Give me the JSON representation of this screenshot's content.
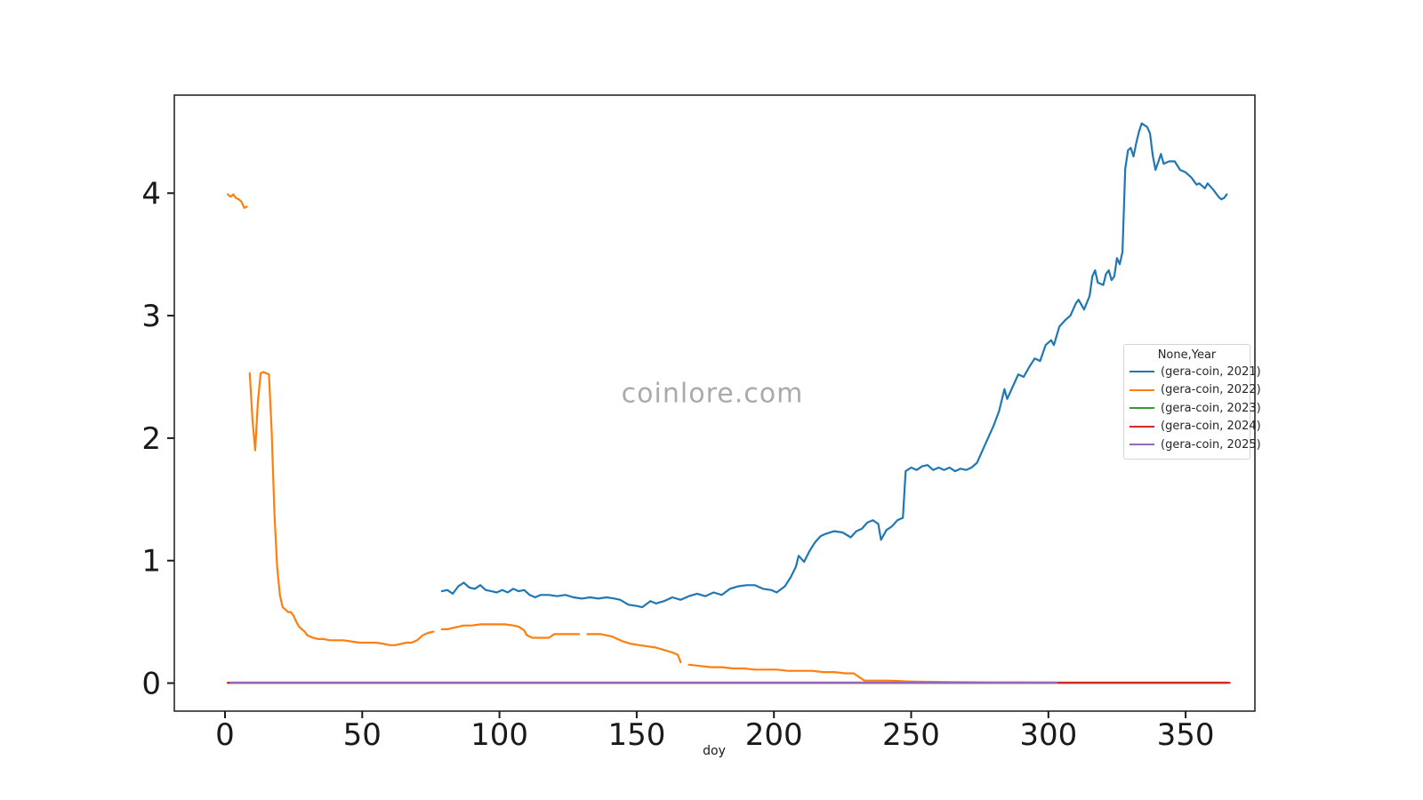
{
  "page": {
    "background": "#ffffff"
  },
  "chart_data": {
    "type": "line",
    "title": "",
    "xlabel": "doy",
    "ylabel": "",
    "watermark": "coinlore.com",
    "xlim": [
      -18,
      384
    ],
    "ylim": [
      -0.23,
      4.8
    ],
    "grid": false,
    "x_ticks": [
      0,
      50,
      100,
      150,
      200,
      250,
      300,
      350
    ],
    "y_ticks": [
      0,
      1,
      2,
      3,
      4
    ],
    "legend": {
      "title": "None,Year",
      "position": "center-right",
      "entries": [
        {
          "label": "(gera-coin, 2021)",
          "color": "#1f77b4"
        },
        {
          "label": "(gera-coin, 2022)",
          "color": "#ff7f0e"
        },
        {
          "label": "(gera-coin, 2023)",
          "color": "#2ca02c"
        },
        {
          "label": "(gera-coin, 2024)",
          "color": "#d62728"
        },
        {
          "label": "(gera-coin, 2025)",
          "color": "#9467bd"
        }
      ]
    },
    "series": [
      {
        "name": "(gera-coin, 2021)",
        "year": 2021,
        "color": "#1f77b4",
        "segments": [
          [
            [
              79,
              0.75
            ],
            [
              81,
              0.76
            ],
            [
              83,
              0.73
            ],
            [
              85,
              0.79
            ],
            [
              87,
              0.82
            ],
            [
              89,
              0.78
            ],
            [
              91,
              0.77
            ],
            [
              93,
              0.8
            ],
            [
              95,
              0.76
            ],
            [
              97,
              0.75
            ],
            [
              99,
              0.74
            ],
            [
              101,
              0.76
            ],
            [
              103,
              0.74
            ],
            [
              105,
              0.77
            ],
            [
              107,
              0.75
            ],
            [
              109,
              0.76
            ],
            [
              111,
              0.72
            ],
            [
              113,
              0.7
            ],
            [
              115,
              0.72
            ],
            [
              118,
              0.72
            ],
            [
              121,
              0.71
            ],
            [
              124,
              0.72
            ],
            [
              127,
              0.7
            ],
            [
              130,
              0.69
            ],
            [
              133,
              0.7
            ],
            [
              136,
              0.69
            ],
            [
              139,
              0.7
            ],
            [
              142,
              0.69
            ],
            [
              144,
              0.68
            ],
            [
              147,
              0.64
            ],
            [
              150,
              0.63
            ],
            [
              152,
              0.62
            ],
            [
              155,
              0.67
            ],
            [
              157,
              0.65
            ],
            [
              160,
              0.67
            ],
            [
              163,
              0.7
            ],
            [
              166,
              0.68
            ],
            [
              169,
              0.71
            ],
            [
              172,
              0.73
            ],
            [
              175,
              0.71
            ],
            [
              178,
              0.74
            ],
            [
              181,
              0.72
            ],
            [
              184,
              0.77
            ],
            [
              187,
              0.79
            ],
            [
              190,
              0.8
            ],
            [
              193,
              0.8
            ],
            [
              196,
              0.77
            ],
            [
              199,
              0.76
            ],
            [
              201,
              0.74
            ],
            [
              204,
              0.79
            ],
            [
              206,
              0.86
            ],
            [
              208,
              0.95
            ],
            [
              209,
              1.04
            ],
            [
              211,
              0.99
            ],
            [
              213,
              1.08
            ],
            [
              215,
              1.15
            ],
            [
              217,
              1.2
            ],
            [
              219,
              1.22
            ],
            [
              222,
              1.24
            ],
            [
              225,
              1.23
            ],
            [
              228,
              1.19
            ],
            [
              230,
              1.24
            ],
            [
              232,
              1.26
            ],
            [
              234,
              1.31
            ],
            [
              236,
              1.33
            ],
            [
              238,
              1.3
            ],
            [
              239,
              1.17
            ],
            [
              241,
              1.25
            ],
            [
              243,
              1.28
            ],
            [
              245,
              1.33
            ],
            [
              247,
              1.35
            ],
            [
              248,
              1.73
            ],
            [
              250,
              1.76
            ],
            [
              252,
              1.74
            ],
            [
              254,
              1.77
            ],
            [
              256,
              1.78
            ],
            [
              258,
              1.74
            ],
            [
              260,
              1.76
            ],
            [
              262,
              1.74
            ],
            [
              264,
              1.76
            ],
            [
              266,
              1.73
            ],
            [
              268,
              1.75
            ],
            [
              270,
              1.74
            ],
            [
              272,
              1.76
            ],
            [
              274,
              1.8
            ],
            [
              276,
              1.9
            ],
            [
              278,
              2.0
            ],
            [
              280,
              2.1
            ],
            [
              282,
              2.22
            ],
            [
              284,
              2.4
            ],
            [
              285,
              2.32
            ],
            [
              287,
              2.42
            ],
            [
              289,
              2.52
            ],
            [
              291,
              2.5
            ],
            [
              293,
              2.58
            ],
            [
              295,
              2.65
            ],
            [
              297,
              2.63
            ],
            [
              299,
              2.76
            ],
            [
              301,
              2.8
            ],
            [
              302,
              2.76
            ],
            [
              304,
              2.91
            ],
            [
              306,
              2.96
            ],
            [
              308,
              3.0
            ],
            [
              310,
              3.1
            ],
            [
              311,
              3.13
            ],
            [
              313,
              3.05
            ],
            [
              315,
              3.16
            ],
            [
              316,
              3.32
            ],
            [
              317,
              3.37
            ],
            [
              318,
              3.27
            ],
            [
              320,
              3.25
            ],
            [
              321,
              3.34
            ],
            [
              322,
              3.37
            ],
            [
              323,
              3.29
            ],
            [
              324,
              3.32
            ],
            [
              325,
              3.47
            ],
            [
              326,
              3.42
            ],
            [
              327,
              3.52
            ],
            [
              328,
              4.2
            ],
            [
              329,
              4.35
            ],
            [
              330,
              4.37
            ],
            [
              331,
              4.3
            ],
            [
              332,
              4.41
            ],
            [
              333,
              4.5
            ],
            [
              334,
              4.57
            ],
            [
              336,
              4.54
            ],
            [
              337,
              4.49
            ],
            [
              338,
              4.31
            ],
            [
              339,
              4.19
            ],
            [
              340,
              4.25
            ],
            [
              341,
              4.32
            ],
            [
              342,
              4.24
            ],
            [
              344,
              4.26
            ],
            [
              346,
              4.26
            ],
            [
              348,
              4.19
            ],
            [
              350,
              4.17
            ],
            [
              352,
              4.13
            ],
            [
              354,
              4.07
            ],
            [
              355,
              4.08
            ],
            [
              357,
              4.04
            ],
            [
              358,
              4.08
            ],
            [
              360,
              4.03
            ],
            [
              362,
              3.97
            ],
            [
              363,
              3.95
            ],
            [
              364,
              3.96
            ],
            [
              365,
              3.99
            ]
          ]
        ]
      },
      {
        "name": "(gera-coin, 2022)",
        "year": 2022,
        "color": "#ff7f0e",
        "segments": [
          [
            [
              1,
              3.99
            ],
            [
              2,
              3.97
            ],
            [
              3,
              3.99
            ],
            [
              4,
              3.96
            ],
            [
              5,
              3.95
            ],
            [
              6,
              3.93
            ],
            [
              7,
              3.88
            ],
            [
              8,
              3.89
            ]
          ],
          [
            [
              9,
              2.53
            ],
            [
              10,
              2.15
            ],
            [
              11,
              1.9
            ],
            [
              12,
              2.3
            ],
            [
              13,
              2.53
            ],
            [
              14,
              2.54
            ],
            [
              15,
              2.53
            ],
            [
              16,
              2.52
            ],
            [
              17,
              2.05
            ],
            [
              18,
              1.4
            ],
            [
              19,
              0.95
            ],
            [
              20,
              0.72
            ],
            [
              21,
              0.62
            ],
            [
              22,
              0.6
            ],
            [
              23,
              0.58
            ],
            [
              24,
              0.58
            ],
            [
              25,
              0.55
            ],
            [
              26,
              0.5
            ],
            [
              27,
              0.46
            ],
            [
              28,
              0.44
            ],
            [
              29,
              0.42
            ],
            [
              30,
              0.39
            ],
            [
              32,
              0.37
            ],
            [
              34,
              0.36
            ],
            [
              36,
              0.36
            ],
            [
              38,
              0.35
            ],
            [
              40,
              0.35
            ],
            [
              43,
              0.35
            ],
            [
              46,
              0.34
            ],
            [
              49,
              0.33
            ],
            [
              52,
              0.33
            ],
            [
              55,
              0.33
            ],
            [
              58,
              0.32
            ],
            [
              60,
              0.31
            ],
            [
              62,
              0.31
            ],
            [
              64,
              0.32
            ],
            [
              66,
              0.33
            ],
            [
              68,
              0.33
            ],
            [
              70,
              0.35
            ],
            [
              72,
              0.39
            ],
            [
              74,
              0.41
            ],
            [
              76,
              0.42
            ]
          ],
          [
            [
              79,
              0.44
            ],
            [
              81,
              0.44
            ],
            [
              83,
              0.45
            ],
            [
              85,
              0.46
            ],
            [
              87,
              0.47
            ],
            [
              90,
              0.47
            ],
            [
              93,
              0.48
            ],
            [
              96,
              0.48
            ],
            [
              99,
              0.48
            ],
            [
              102,
              0.48
            ],
            [
              105,
              0.47
            ],
            [
              107,
              0.46
            ],
            [
              109,
              0.43
            ],
            [
              110,
              0.39
            ],
            [
              112,
              0.37
            ],
            [
              114,
              0.37
            ],
            [
              116,
              0.37
            ],
            [
              118,
              0.37
            ],
            [
              120,
              0.4
            ],
            [
              123,
              0.4
            ],
            [
              126,
              0.4
            ],
            [
              129,
              0.4
            ]
          ],
          [
            [
              132,
              0.4
            ],
            [
              134,
              0.4
            ],
            [
              137,
              0.4
            ],
            [
              139,
              0.39
            ],
            [
              141,
              0.38
            ],
            [
              143,
              0.36
            ],
            [
              145,
              0.34
            ],
            [
              148,
              0.32
            ],
            [
              151,
              0.31
            ],
            [
              154,
              0.3
            ],
            [
              157,
              0.29
            ],
            [
              160,
              0.27
            ],
            [
              163,
              0.25
            ],
            [
              165,
              0.23
            ],
            [
              166,
              0.17
            ]
          ],
          [
            [
              169,
              0.15
            ],
            [
              173,
              0.14
            ],
            [
              177,
              0.13
            ],
            [
              181,
              0.13
            ],
            [
              185,
              0.12
            ],
            [
              189,
              0.12
            ],
            [
              193,
              0.11
            ],
            [
              197,
              0.11
            ],
            [
              201,
              0.11
            ],
            [
              205,
              0.1
            ],
            [
              210,
              0.1
            ],
            [
              214,
              0.1
            ],
            [
              218,
              0.09
            ],
            [
              222,
              0.09
            ],
            [
              226,
              0.08
            ],
            [
              229,
              0.08
            ],
            [
              231,
              0.05
            ],
            [
              233,
              0.02
            ],
            [
              237,
              0.02
            ],
            [
              242,
              0.02
            ],
            [
              247,
              0.015
            ],
            [
              252,
              0.012
            ],
            [
              258,
              0.01
            ],
            [
              264,
              0.008
            ],
            [
              280,
              0.006
            ],
            [
              300,
              0.005
            ],
            [
              330,
              0.004
            ],
            [
              365,
              0.004
            ]
          ]
        ]
      },
      {
        "name": "(gera-coin, 2023)",
        "year": 2023,
        "color": "#2ca02c",
        "segments": [
          [
            [
              1,
              0.002
            ],
            [
              365,
              0.002
            ]
          ]
        ]
      },
      {
        "name": "(gera-coin, 2024)",
        "year": 2024,
        "color": "#d62728",
        "segments": [
          [
            [
              1,
              0.003
            ],
            [
              366,
              0.003
            ]
          ]
        ]
      },
      {
        "name": "(gera-coin, 2025)",
        "year": 2025,
        "color": "#9467bd",
        "segments": [
          [
            [
              2,
              0.004
            ],
            [
              303,
              0.004
            ]
          ]
        ]
      }
    ]
  }
}
